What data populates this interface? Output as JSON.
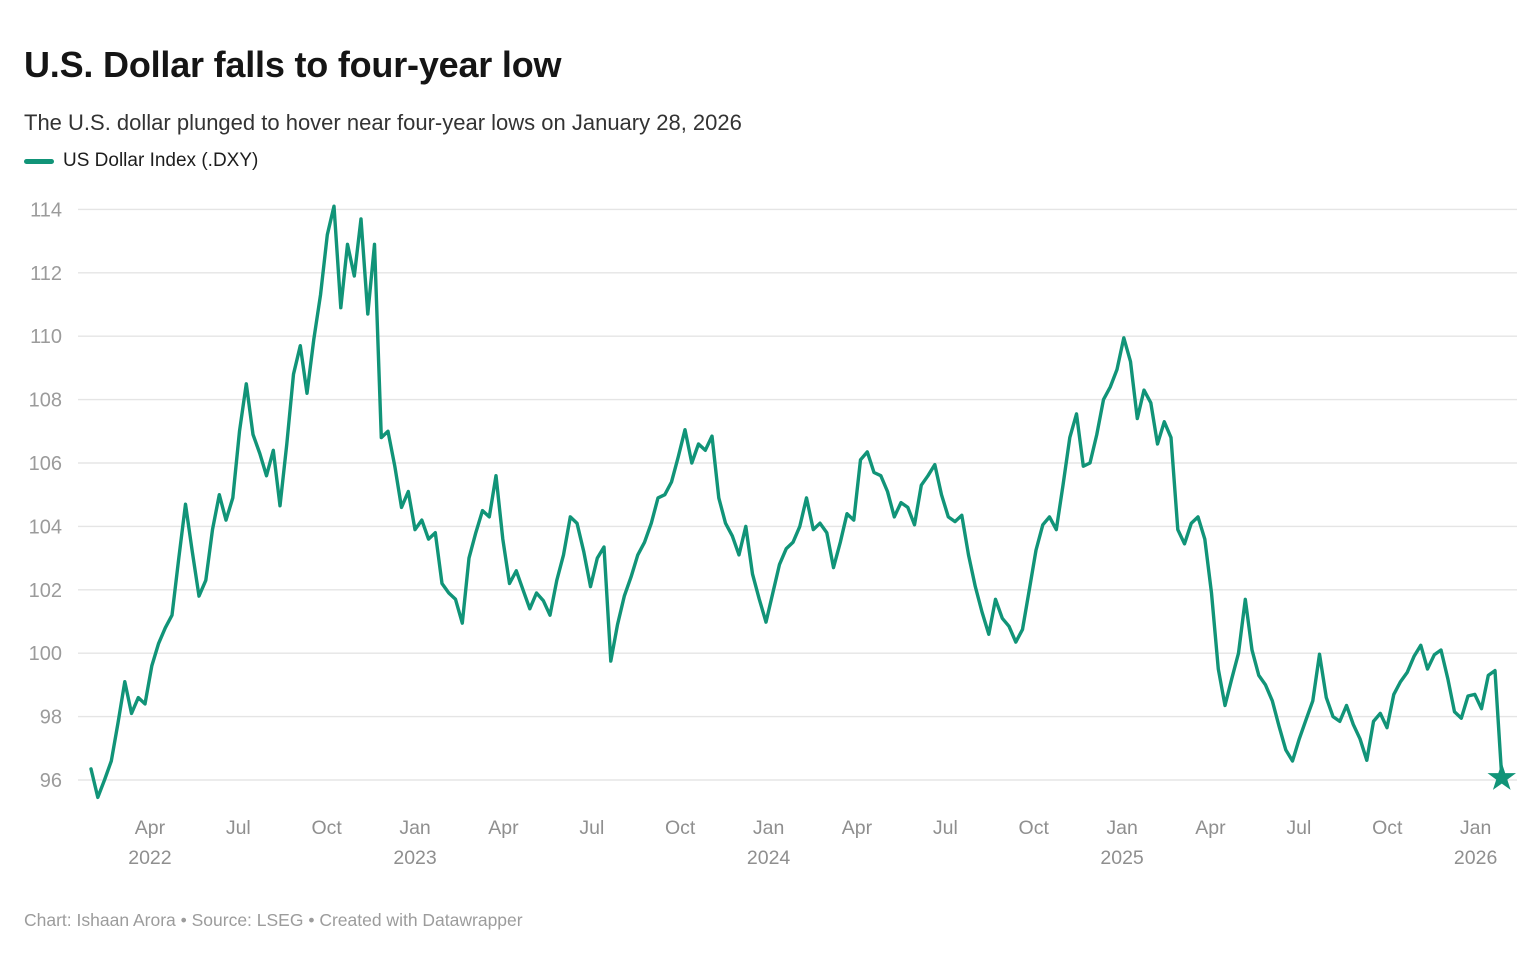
{
  "header": {
    "title": "U.S. Dollar falls to four-year low",
    "subtitle": "The U.S. dollar plunged to hover near four-year lows on January 28, 2026"
  },
  "legend": {
    "label": "US Dollar Index (.DXY)"
  },
  "footer": {
    "credit": "Chart: Ishaan Arora • Source: LSEG • Created with Datawrapper"
  },
  "chart_data": {
    "type": "line",
    "title": "U.S. Dollar falls to four-year low",
    "series_name": "US Dollar Index (.DXY)",
    "color": "#119478",
    "grid": "horizontal",
    "grid_color": "#e5e5e5",
    "axis_label_color_y": "#9b9b9b",
    "axis_label_color_x": "#8f8f8f",
    "ylim": [
      96,
      114
    ],
    "y_ticks": [
      96,
      98,
      100,
      102,
      104,
      106,
      108,
      110,
      112,
      114
    ],
    "x_start": "2022-02-01",
    "x_end": "2026-01-28",
    "x_ticks": [
      {
        "label": "Apr",
        "year": "2022",
        "m": 2
      },
      {
        "label": "Jul",
        "m": 5
      },
      {
        "label": "Oct",
        "m": 8
      },
      {
        "label": "Jan",
        "year": "2023",
        "m": 11
      },
      {
        "label": "Apr",
        "m": 14
      },
      {
        "label": "Jul",
        "m": 17
      },
      {
        "label": "Oct",
        "m": 20
      },
      {
        "label": "Jan",
        "year": "2024",
        "m": 23
      },
      {
        "label": "Apr",
        "m": 26
      },
      {
        "label": "Jul",
        "m": 29
      },
      {
        "label": "Oct",
        "m": 32
      },
      {
        "label": "Jan",
        "year": "2025",
        "m": 35
      },
      {
        "label": "Apr",
        "m": 38
      },
      {
        "label": "Jul",
        "m": 41
      },
      {
        "label": "Oct",
        "m": 44
      },
      {
        "label": "Jan",
        "year": "2026",
        "m": 47
      }
    ],
    "values": [
      96.35,
      95.45,
      96.0,
      96.6,
      97.8,
      99.1,
      98.1,
      98.6,
      98.4,
      99.6,
      100.3,
      100.8,
      101.2,
      103.0,
      104.7,
      103.2,
      101.8,
      102.3,
      103.9,
      105.0,
      104.2,
      104.9,
      107.0,
      108.5,
      106.9,
      106.3,
      105.6,
      106.4,
      104.65,
      106.6,
      108.8,
      109.7,
      108.2,
      109.9,
      111.3,
      113.2,
      114.1,
      110.9,
      112.9,
      111.9,
      113.7,
      110.7,
      112.9,
      106.8,
      107.0,
      105.9,
      104.6,
      105.1,
      103.9,
      104.2,
      103.6,
      103.8,
      102.2,
      101.9,
      101.7,
      100.95,
      103.0,
      103.8,
      104.5,
      104.3,
      105.6,
      103.6,
      102.2,
      102.6,
      102.0,
      101.4,
      101.9,
      101.66,
      101.2,
      102.3,
      103.1,
      104.3,
      104.1,
      103.2,
      102.1,
      103.0,
      103.35,
      99.75,
      100.9,
      101.8,
      102.4,
      103.1,
      103.5,
      104.1,
      104.9,
      105.0,
      105.4,
      106.2,
      107.05,
      106.0,
      106.6,
      106.4,
      106.85,
      104.9,
      104.1,
      103.7,
      103.1,
      104.0,
      102.5,
      101.7,
      100.98,
      101.9,
      102.8,
      103.3,
      103.5,
      104.0,
      104.9,
      103.9,
      104.1,
      103.8,
      102.7,
      103.5,
      104.4,
      104.2,
      106.1,
      106.35,
      105.7,
      105.6,
      105.1,
      104.3,
      104.75,
      104.6,
      104.05,
      105.3,
      105.6,
      105.95,
      105.0,
      104.3,
      104.15,
      104.35,
      103.1,
      102.1,
      101.3,
      100.6,
      101.7,
      101.1,
      100.85,
      100.35,
      100.75,
      102.0,
      103.25,
      104.05,
      104.3,
      103.9,
      105.3,
      106.8,
      107.55,
      105.9,
      106.0,
      106.9,
      108.0,
      108.4,
      108.95,
      109.95,
      109.2,
      107.4,
      108.3,
      107.9,
      106.6,
      107.3,
      106.8,
      103.9,
      103.45,
      104.1,
      104.3,
      103.6,
      101.9,
      99.5,
      98.35,
      99.2,
      100.0,
      101.7,
      100.1,
      99.3,
      99.0,
      98.5,
      97.7,
      96.95,
      96.6,
      97.3,
      97.9,
      98.5,
      99.97,
      98.6,
      98.0,
      97.85,
      98.35,
      97.75,
      97.3,
      96.62,
      97.85,
      98.1,
      97.65,
      98.7,
      99.1,
      99.4,
      99.9,
      100.25,
      99.5,
      99.95,
      100.1,
      99.2,
      98.15,
      97.95,
      98.65,
      98.7,
      98.25,
      99.3,
      99.45,
      96.07
    ],
    "end_marker": {
      "shape": "star",
      "date": "2026-01-28",
      "value": 96.07
    }
  }
}
